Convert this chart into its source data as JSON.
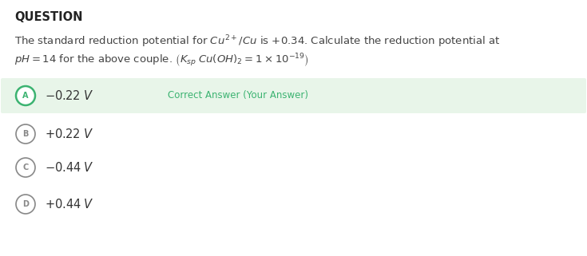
{
  "title": "QUESTION",
  "question_line1": "The standard reduction potential for $Cu^{2+}/Cu$ is $+0.34$. Calculate the reduction potential at",
  "question_line2": "$pH = 14$ for the above couple. $\\left(K_{sp}\\; Cu(OH)_2 = 1 \\times 10^{-19}\\right)$",
  "options": [
    {
      "label": "A",
      "text": "$-0.22\\;V$",
      "correct": true
    },
    {
      "label": "B",
      "text": "$+0.22\\;V$",
      "correct": false
    },
    {
      "label": "C",
      "text": "$-0.44\\;V$",
      "correct": false
    },
    {
      "label": "D",
      "text": "$+0.44\\;V$",
      "correct": false
    }
  ],
  "correct_answer_label": "Correct Answer (Your Answer)",
  "correct_answer_color": "#3cb371",
  "highlight_bg": "#e8f5e9",
  "highlight_border": "#3cb371",
  "circle_color_correct": "#3cb371",
  "circle_color_normal": "#888888",
  "title_color": "#222222",
  "question_color": "#444444",
  "option_text_color": "#333333",
  "bg_color": "#ffffff",
  "title_fontsize": 10.5,
  "question_fontsize": 9.5,
  "option_fontsize": 10.5
}
